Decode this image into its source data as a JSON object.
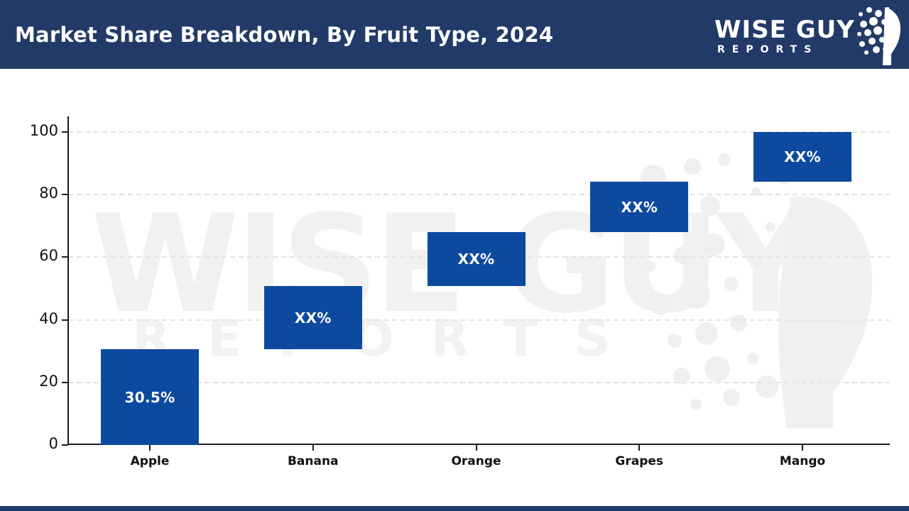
{
  "header": {
    "title": "Market Share Breakdown, By Fruit Type, 2024",
    "bg_color": "#223a67",
    "logo": {
      "wordmark": "WISE GUY",
      "subtitle": "REPORTS"
    }
  },
  "watermark": {
    "wordmark": "WISE GUY",
    "subtitle": "REPORTS"
  },
  "chart_data": {
    "type": "bar",
    "subtype": "floating-segment-waterfall",
    "title": "Market Share Breakdown, By Fruit Type, 2024",
    "categories": [
      "Apple",
      "Banana",
      "Orange",
      "Grapes",
      "Mango"
    ],
    "bars": [
      {
        "category": "Apple",
        "start": 0,
        "end": 30.5,
        "label": "30.5%"
      },
      {
        "category": "Banana",
        "start": 30.5,
        "end": 50.8,
        "label": "XX%"
      },
      {
        "category": "Orange",
        "start": 50.8,
        "end": 68.0,
        "label": "XX%"
      },
      {
        "category": "Grapes",
        "start": 68.0,
        "end": 84.1,
        "label": "XX%"
      },
      {
        "category": "Mango",
        "start": 84.1,
        "end": 100,
        "label": "XX%"
      }
    ],
    "xlabel": "",
    "ylabel": "",
    "ylim": [
      0,
      105
    ],
    "yticks": [
      0,
      20,
      40,
      60,
      80,
      100
    ],
    "grid": "horizontal-dashed",
    "legend": false,
    "bar_color": "#0d4a9f",
    "bar_label_color": "#ffffff",
    "axis_color": "#1c1c1c",
    "gridline_color": "#e3e3e3"
  },
  "footer": {
    "bar_color": "#223a67"
  }
}
